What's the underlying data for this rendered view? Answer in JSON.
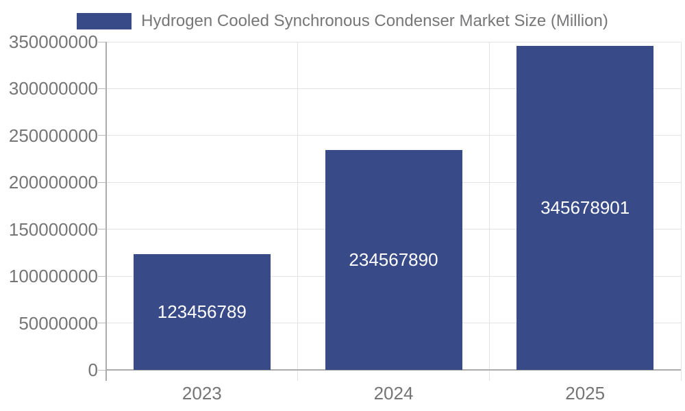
{
  "colors": {
    "bar": "#384A87",
    "grid": "#e3e3e3",
    "axis": "#ababab",
    "tick_label": "#757575",
    "legend_text": "#777779",
    "value_label": "#ffffff",
    "background": "#ffffff"
  },
  "chart_data": {
    "type": "bar",
    "title": "Hydrogen Cooled Synchronous Condenser Market Size (Million)",
    "xlabel": "",
    "ylabel": "",
    "categories": [
      "2023",
      "2024",
      "2025"
    ],
    "values": [
      123456789,
      234567890,
      345678901
    ],
    "value_labels": [
      "123456789",
      "234567890",
      "345678901"
    ],
    "ylim": [
      0,
      350000000
    ],
    "yticks": [
      0,
      50000000,
      100000000,
      150000000,
      200000000,
      250000000,
      300000000,
      350000000
    ],
    "grid": true,
    "legend_position": "top",
    "value_labels_inside_bars": true
  }
}
